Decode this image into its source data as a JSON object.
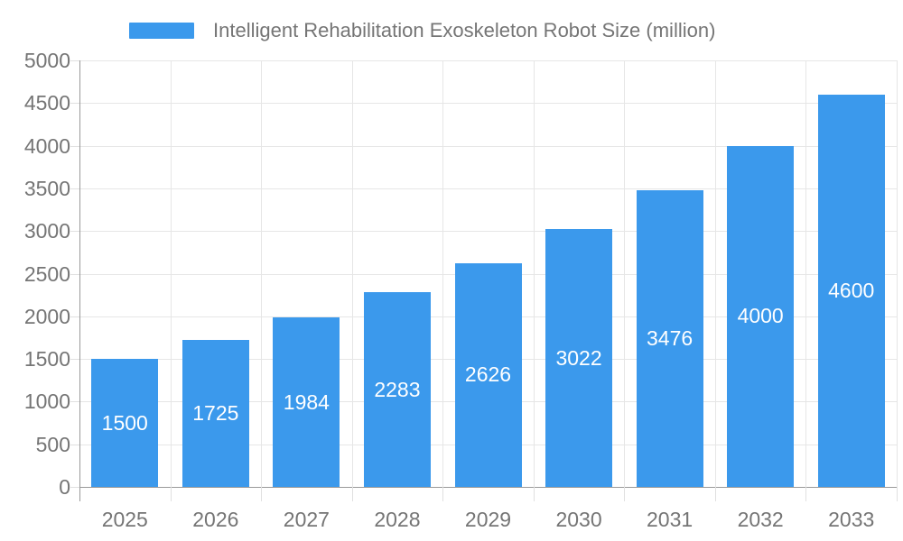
{
  "chart_data": {
    "type": "bar",
    "title": "Intelligent Rehabilitation Exoskeleton Robot Size (million)",
    "categories": [
      "2025",
      "2026",
      "2027",
      "2028",
      "2029",
      "2030",
      "2031",
      "2032",
      "2033"
    ],
    "values": [
      1500,
      1725,
      1984,
      2283,
      2626,
      3022,
      3476,
      4000,
      4600
    ],
    "bar_labels": [
      "1500",
      "1725",
      "1984",
      "2283",
      "2626",
      "3022",
      "3476",
      "4000",
      "4600"
    ],
    "xlabel": "",
    "ylabel": "",
    "ylim": [
      0,
      5000
    ],
    "ytick_step": 500,
    "y_ticks": [
      "0",
      "500",
      "1000",
      "1500",
      "2000",
      "2500",
      "3000",
      "3500",
      "4000",
      "4500",
      "5000"
    ],
    "grid": true,
    "legend_position": "top-left",
    "colors": {
      "bar": "#3B99EC",
      "bar_label": "#FFFFFF",
      "axis_line": "#999999",
      "grid_line": "#E6E6E6",
      "tick_line": "#E0E0E0",
      "text": "#757575",
      "background": "#FFFFFF"
    }
  }
}
